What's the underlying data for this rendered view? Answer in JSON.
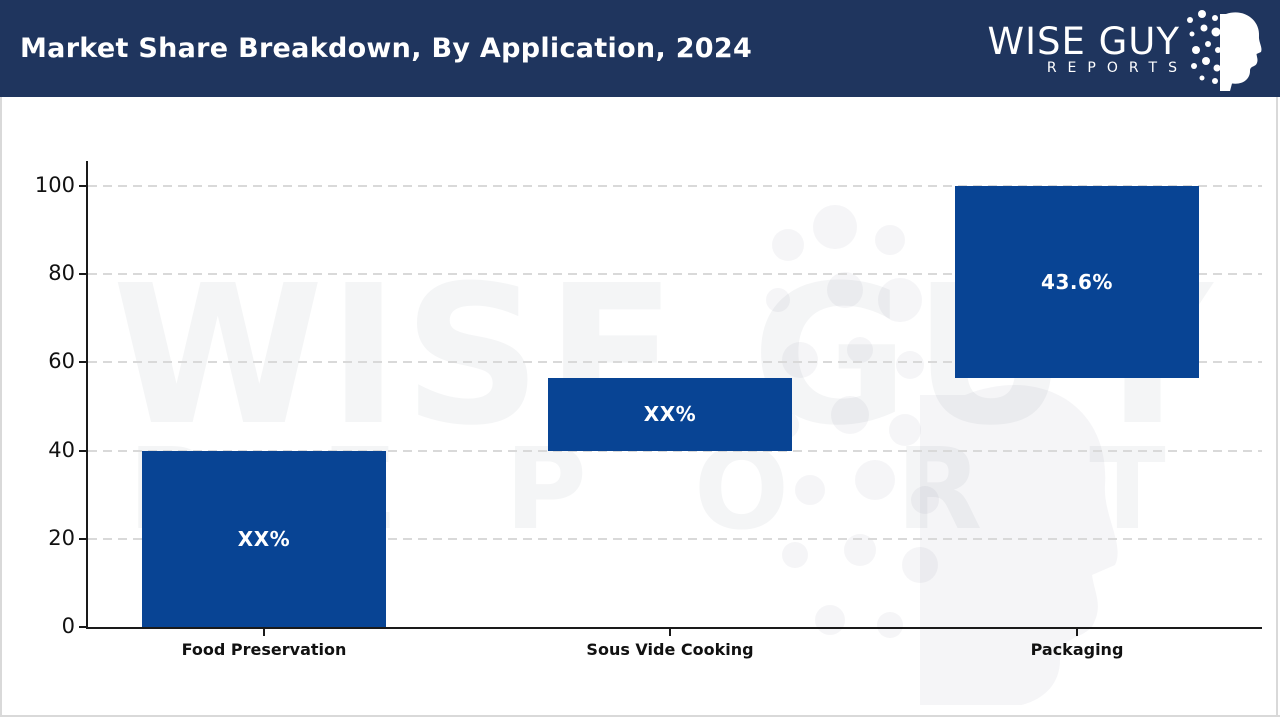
{
  "header": {
    "title": "Market Share Breakdown, By Application, 2024",
    "logo_line1": "WISE GUY",
    "logo_line2": "REPORTS"
  },
  "watermark": {
    "line1": "WISE GUY",
    "line2": "R E P O R T S"
  },
  "chart_data": {
    "type": "bar",
    "variant": "waterfall",
    "title": "Market Share Breakdown, By Application, 2024",
    "categories": [
      "Food Preservation",
      "Sous Vide Cooking",
      "Packaging"
    ],
    "bars": [
      {
        "category": "Food Preservation",
        "start": 0,
        "end": 40,
        "label": "XX%"
      },
      {
        "category": "Sous Vide Cooking",
        "start": 40,
        "end": 56.4,
        "label": "XX%"
      },
      {
        "category": "Packaging",
        "start": 56.4,
        "end": 100,
        "label": "43.6%"
      }
    ],
    "yticks": [
      0,
      20,
      40,
      60,
      80,
      100
    ],
    "ylim": [
      0,
      106
    ],
    "xlabel": "",
    "ylabel": "",
    "grid": "horizontal-dashed",
    "legend": null,
    "bar_color": "#084494",
    "grid_color": "#d9d9d9",
    "axis_color": "#1a1a1a",
    "header_color": "#1F355E"
  }
}
